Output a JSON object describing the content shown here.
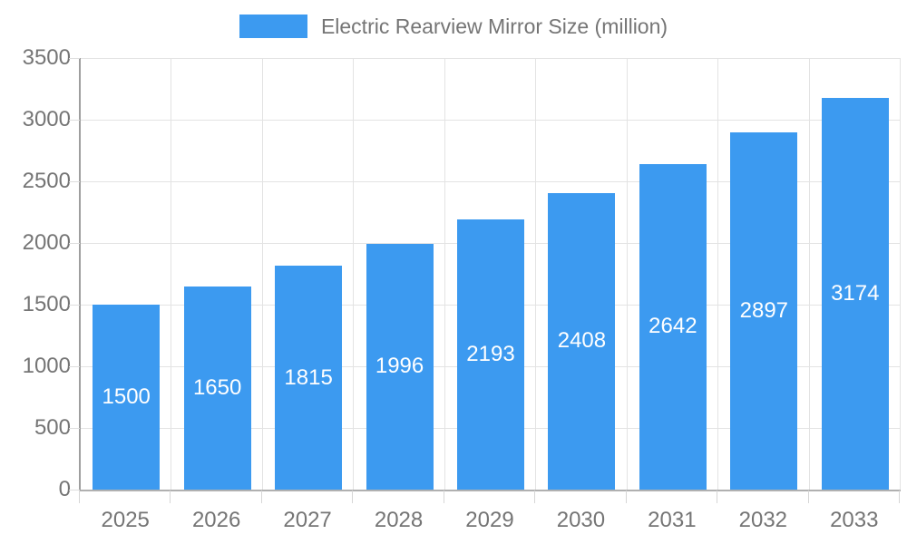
{
  "chart_data": {
    "type": "bar",
    "title": "",
    "legend": {
      "label": "Electric Rearview Mirror Size (million)",
      "position": "top-center"
    },
    "categories": [
      "2025",
      "2026",
      "2027",
      "2028",
      "2029",
      "2030",
      "2031",
      "2032",
      "2033"
    ],
    "series": [
      {
        "name": "Electric Rearview Mirror Size (million)",
        "values": [
          1500,
          1650,
          1815,
          1996,
          2193,
          2408,
          2642,
          2897,
          3174
        ]
      }
    ],
    "bar_value_labels": [
      "1500",
      "1650",
      "1815",
      "1996",
      "2193",
      "2408",
      "2642",
      "2897",
      "3174"
    ],
    "xlabel": "",
    "ylabel": "",
    "ylim": [
      0,
      3500
    ],
    "ytick_interval": 500,
    "ytick_labels": [
      "0",
      "500",
      "1000",
      "1500",
      "2000",
      "2500",
      "3000",
      "3500"
    ],
    "grid": true,
    "legend_position": "top-center"
  },
  "colors": {
    "bar": "#3c9af0",
    "bar_label_text": "#ffffff",
    "axis_text": "#757575",
    "legend_text": "#757575",
    "gridline": "#e3e3e3",
    "axis_line": "#a8a8a8",
    "background": "#ffffff"
  }
}
